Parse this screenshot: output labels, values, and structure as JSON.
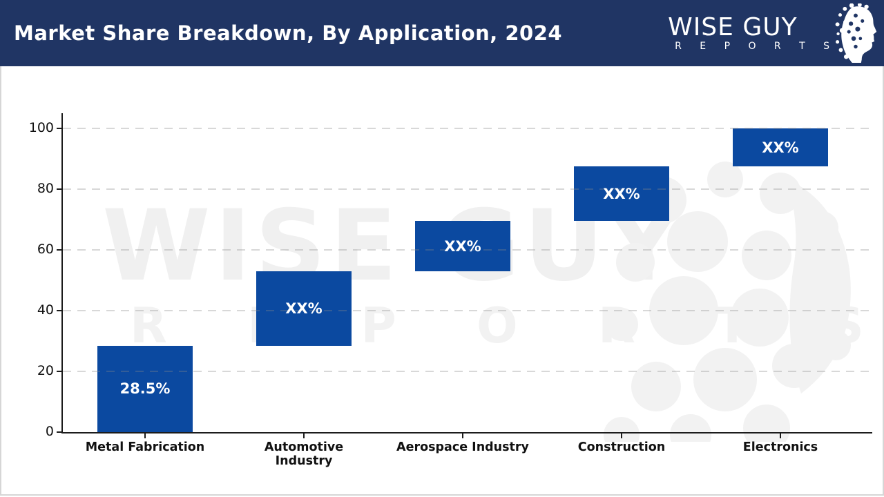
{
  "header": {
    "title": "Market Share Breakdown, By Application, 2024",
    "bg_color": "#203564",
    "logo": {
      "line1": "WISE GUY",
      "line2": "R E P O R T S"
    }
  },
  "watermark": {
    "line1": "WISE GUY",
    "line2": "R E P O R T S"
  },
  "chart_data": {
    "type": "bar",
    "subtype": "waterfall-stacked-floating-bars",
    "title": "Market Share Breakdown, By Application, 2024",
    "xlabel": "",
    "ylabel": "",
    "ylim": [
      0,
      100
    ],
    "yticks": [
      0,
      20,
      40,
      60,
      80,
      100
    ],
    "grid": "dashed-horizontal",
    "legend": "none",
    "bar_color": "#0b49a0",
    "categories": [
      "Metal Fabrication",
      "Automotive\nIndustry",
      "Aerospace Industry",
      "Construction",
      "Electronics"
    ],
    "segments": [
      {
        "category": "Metal Fabrication",
        "start": 0,
        "end": 28.5,
        "value": 28.5,
        "label": "28.5%"
      },
      {
        "category": "Automotive Industry",
        "start": 28.5,
        "end": 53,
        "value": 24.5,
        "label": "XX%"
      },
      {
        "category": "Aerospace Industry",
        "start": 53,
        "end": 69.5,
        "value": 16.5,
        "label": "XX%"
      },
      {
        "category": "Construction",
        "start": 69.5,
        "end": 87.5,
        "value": 18,
        "label": "XX%"
      },
      {
        "category": "Electronics",
        "start": 87.5,
        "end": 100,
        "value": 12.5,
        "label": "XX%"
      }
    ]
  }
}
